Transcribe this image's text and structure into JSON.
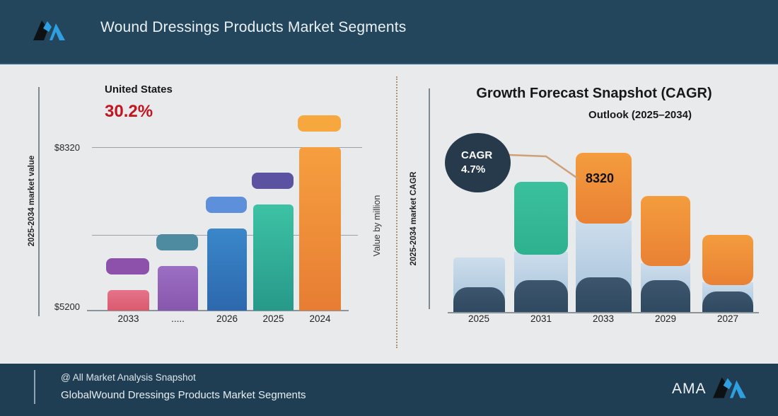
{
  "header": {
    "title": "Wound Dressings Products Market Segments"
  },
  "footer": {
    "line1": "@ All Market Analysis Snapshot",
    "line2": "GlobalWound Dressings Products Market Segments",
    "brand": "AMA"
  },
  "colors": {
    "header_bg": "#23465c",
    "panel_bg": "#e9eaeb",
    "footer_bg": "#1f3e53",
    "accent_red": "#c3141f",
    "cagr_circle": "#263a4c",
    "connector": "#cfa078",
    "logo_black": "#0e1114",
    "logo_blue": "#2e9fe0"
  },
  "chart_data": [
    {
      "type": "bar",
      "name": "us-market-value",
      "title": "United States",
      "annotation": "30.2%",
      "ylabel": "2025-2034 market value",
      "ylabel_right": "Value by million",
      "yticks": [
        "$5200",
        "$8320"
      ],
      "ylim": [
        5200,
        8320
      ],
      "grid": "two horizontal gridlines, labeled $8320 top and $5200 at axis",
      "categories": [
        "2033",
        ".....",
        "2026",
        "2025",
        "2024"
      ],
      "values": [
        5590,
        6050,
        6770,
        7220,
        8320
      ],
      "bar_colors": [
        [
          "#e5738a",
          "#da5a6e"
        ],
        [
          "#9c6fc3",
          "#8757ae"
        ],
        [
          "#3a87ca",
          "#2d68ad"
        ],
        [
          "#3dc2a4",
          "#27998a"
        ],
        [
          "#f69f3f",
          "#e77d33"
        ]
      ],
      "cap_colors": [
        "#8d51ab",
        "#4e8ba1",
        "#5d8fdb",
        "#5b53a2",
        "#f6a73e"
      ]
    },
    {
      "type": "bar",
      "name": "growth-forecast-cagr",
      "title": "Growth Forecast Snapshot (CAGR)",
      "subtitle": "Outlook (2025–2034)",
      "ylabel": "2025-2034 market CAGR",
      "callout": {
        "label": "CAGR",
        "value": "4.7%"
      },
      "categories": [
        "2025",
        "2031",
        "2033",
        "2029",
        "2027"
      ],
      "value_label": {
        "category": "2033",
        "text": "8320"
      },
      "stacked": true,
      "series_note": "segment heights in relative units (axis unlabeled)",
      "segments": [
        [
          [
            "navy",
            35
          ],
          [
            "lightblue",
            42
          ]
        ],
        [
          [
            "navy",
            45
          ],
          [
            "lightblue",
            40
          ],
          [
            "green",
            99
          ]
        ],
        [
          [
            "navy",
            49
          ],
          [
            "lightblue",
            80
          ],
          [
            "orange",
            96
          ]
        ],
        [
          [
            "navy",
            45
          ],
          [
            "lightblue",
            24
          ],
          [
            "orange",
            95
          ]
        ],
        [
          [
            "navy",
            29
          ],
          [
            "lightblue",
            13
          ],
          [
            "orange",
            67
          ]
        ]
      ],
      "segment_colors": {
        "navy": [
          "#3d566e",
          "#2f4960"
        ],
        "lightblue": [
          "#cdddec",
          "#a3c1d9"
        ],
        "green": [
          "#3bc09e",
          "#2eb18f"
        ],
        "orange": [
          "#f49c3e",
          "#e98134"
        ]
      }
    }
  ]
}
